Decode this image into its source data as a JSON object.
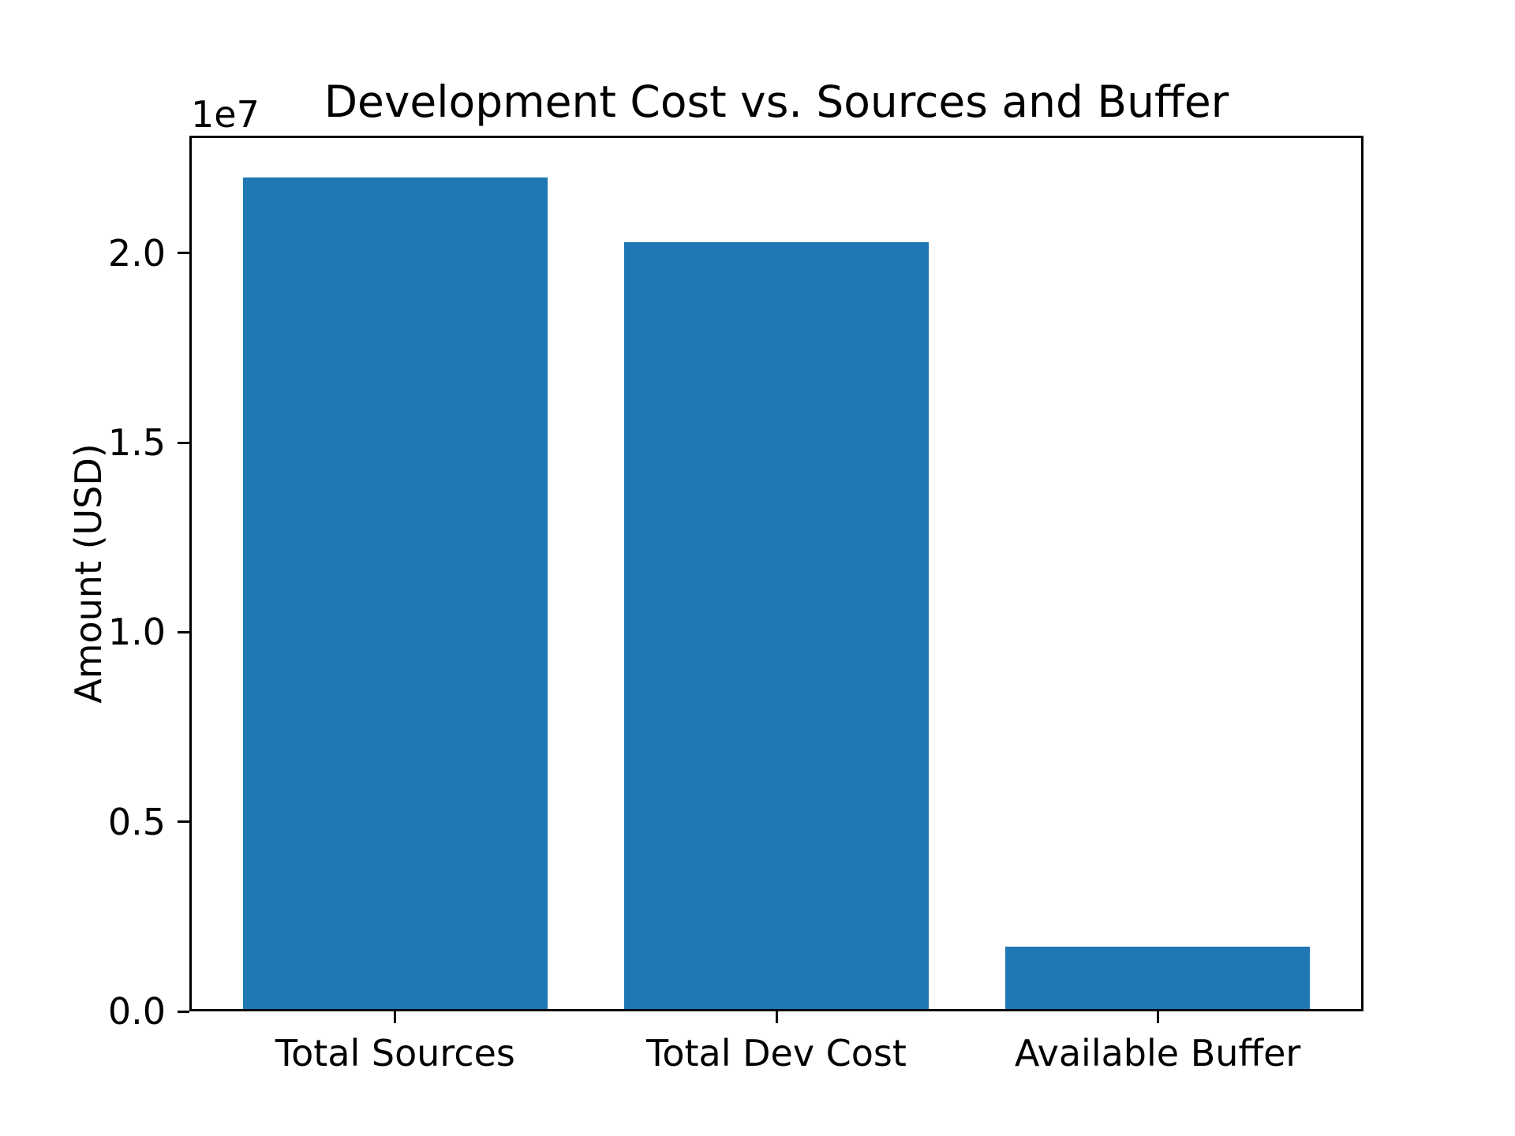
{
  "chart_data": {
    "type": "bar",
    "title": "Development Cost vs. Sources and Buffer",
    "categories": [
      "Total Sources",
      "Total Dev Cost",
      "Available Buffer"
    ],
    "values": [
      22000000,
      20300000,
      1700000
    ],
    "xlabel": "",
    "ylabel": "Amount (USD)",
    "ylim": [
      0,
      23100000
    ],
    "yticks": [
      0,
      5000000,
      10000000,
      15000000,
      20000000
    ],
    "ytick_labels": [
      "0.0",
      "0.5",
      "1.0",
      "1.5",
      "2.0"
    ],
    "y_offset_label": "1e7",
    "bar_color": "#1f77b4",
    "text_color": "#000000",
    "background_color": "#ffffff",
    "grid": false,
    "legend": null,
    "bar_width_fraction": 0.8
  }
}
